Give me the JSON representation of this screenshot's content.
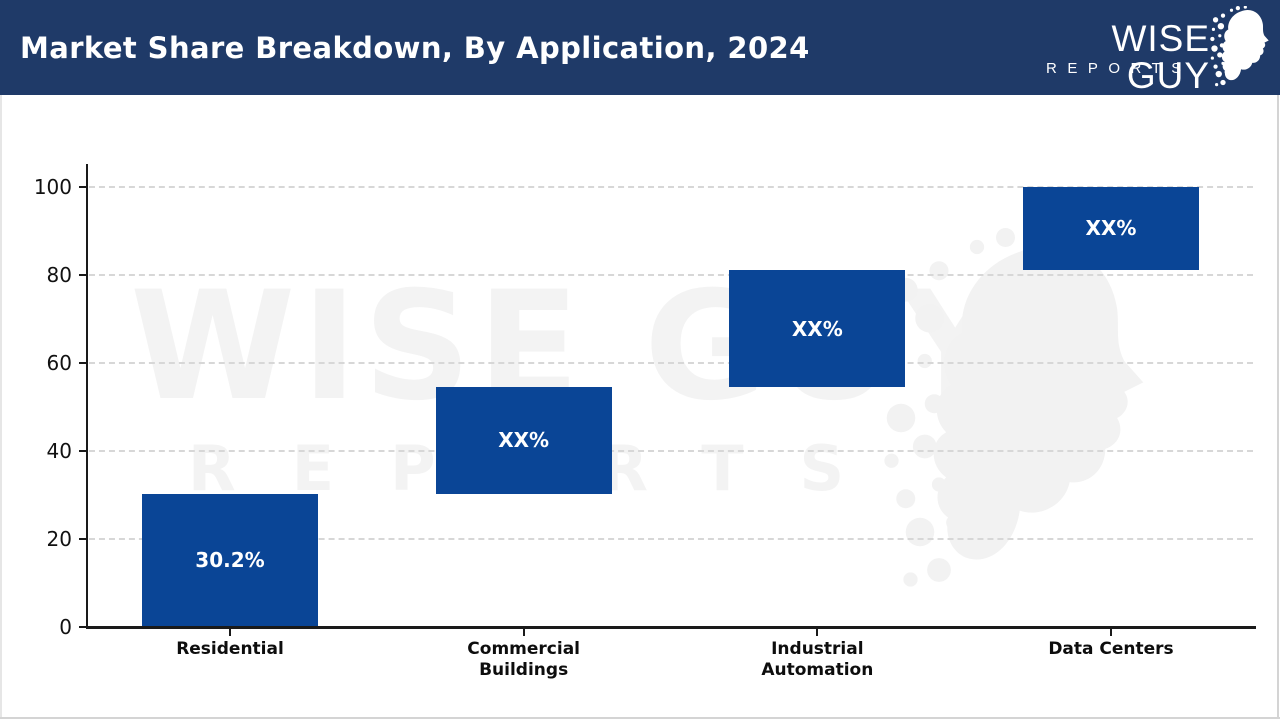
{
  "header": {
    "title": "Market Share Breakdown, By Application, 2024",
    "logo": {
      "wordmark": "WISE GUY",
      "subtext": "REPORTS"
    }
  },
  "watermark": {
    "line1": "WISE GUY",
    "line2": "REPORTS"
  },
  "chart_data": {
    "type": "bar",
    "subtype": "floating-segment-waterfall",
    "title": "Market Share Breakdown, By Application, 2024",
    "xlabel": "",
    "ylabel": "",
    "categories": [
      "Residential",
      "Commercial Buildings",
      "Industrial Automation",
      "Data Centers"
    ],
    "bars": [
      {
        "category": "Residential",
        "label_lines": [
          "Residential"
        ],
        "base": 0,
        "top": 30.2,
        "value": 30.2,
        "value_label": "30.2%"
      },
      {
        "category": "Commercial Buildings",
        "label_lines": [
          "Commercial",
          "Buildings"
        ],
        "base": 30.2,
        "top": 54.5,
        "value": 24.3,
        "value_label": "XX%"
      },
      {
        "category": "Industrial Automation",
        "label_lines": [
          "Industrial",
          "Automation"
        ],
        "base": 54.5,
        "top": 81.0,
        "value": 26.5,
        "value_label": "XX%"
      },
      {
        "category": "Data Centers",
        "label_lines": [
          "Data Centers"
        ],
        "base": 81.0,
        "top": 100.0,
        "value": 19.0,
        "value_label": "XX%"
      }
    ],
    "yticks": [
      0,
      20,
      40,
      60,
      80,
      100
    ],
    "ylim": [
      0,
      105
    ],
    "grid": "horizontal-dashed",
    "legend": "none",
    "bar_color": "#0a4596",
    "value_label_color": "#ffffff"
  },
  "colors": {
    "header_bg": "#1f3a68",
    "bar": "#0a4596",
    "grid": "#d7d7d7",
    "axis": "#1a1a1a",
    "watermark": "#f3f3f3",
    "frame_rule": "#d4d4d4",
    "tick_text": "#111111",
    "title_text": "#ffffff"
  }
}
